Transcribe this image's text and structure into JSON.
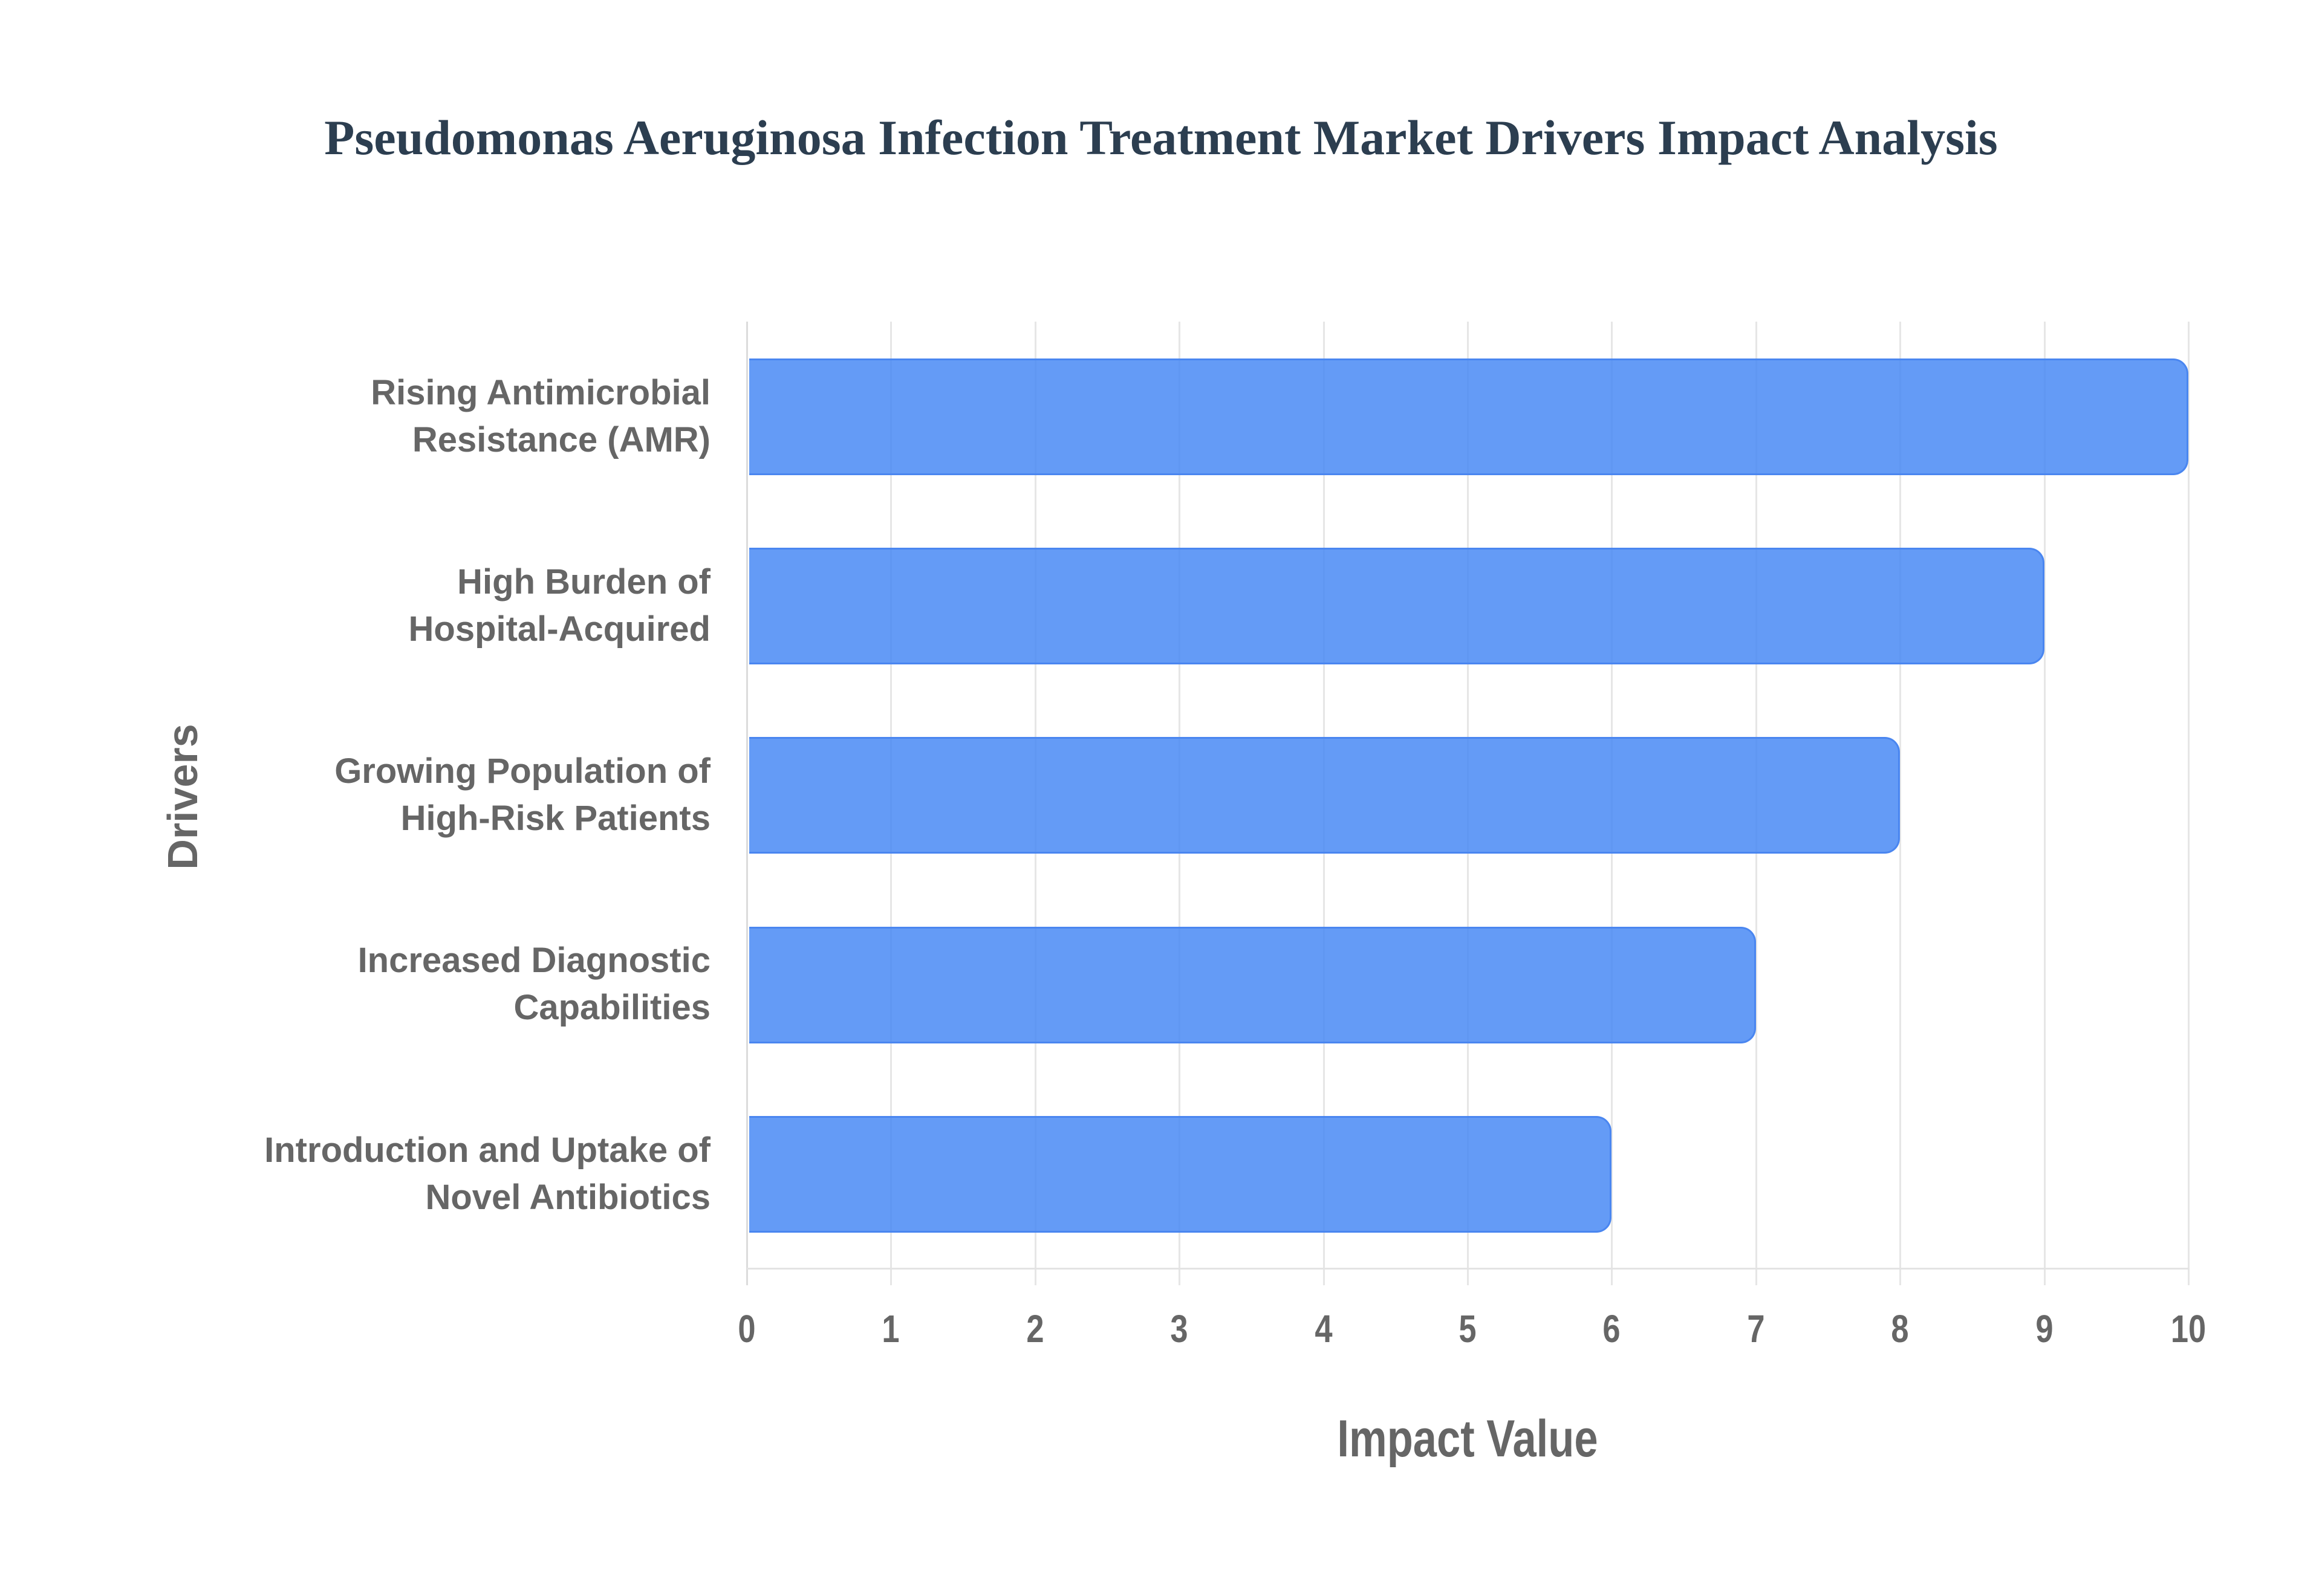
{
  "chart_data": {
    "type": "bar",
    "orientation": "horizontal",
    "title": "Pseudomonas Aeruginosa Infection Treatment Market Drivers Impact Analysis",
    "xlabel": "Impact Value",
    "ylabel": "Drivers",
    "categories": [
      "Rising Antimicrobial Resistance (AMR)",
      "High Burden of Hospital-Acquired",
      "Growing Population of High-Risk Patients",
      "Increased Diagnostic Capabilities",
      "Introduction and Uptake of Novel Antibiotics"
    ],
    "category_lines": [
      [
        "Rising Antimicrobial",
        "Resistance (AMR)"
      ],
      [
        "High Burden of",
        "Hospital-Acquired"
      ],
      [
        "Growing Population of",
        "High-Risk Patients"
      ],
      [
        "Increased Diagnostic",
        "Capabilities"
      ],
      [
        "Introduction and Uptake of",
        "Novel Antibiotics"
      ]
    ],
    "values": [
      10,
      9,
      8,
      7,
      6
    ],
    "xlim": [
      0,
      10
    ],
    "xticks": [
      "0",
      "1",
      "2",
      "3",
      "4",
      "5",
      "6",
      "7",
      "8",
      "9",
      "10"
    ],
    "grid": true,
    "legend": null,
    "colors": {
      "bar_fill": "#6399f4",
      "bar_border": "#4a86f0",
      "title": "#2c3e50",
      "axis_text": "#666666",
      "grid": "#e6e6e6"
    }
  }
}
